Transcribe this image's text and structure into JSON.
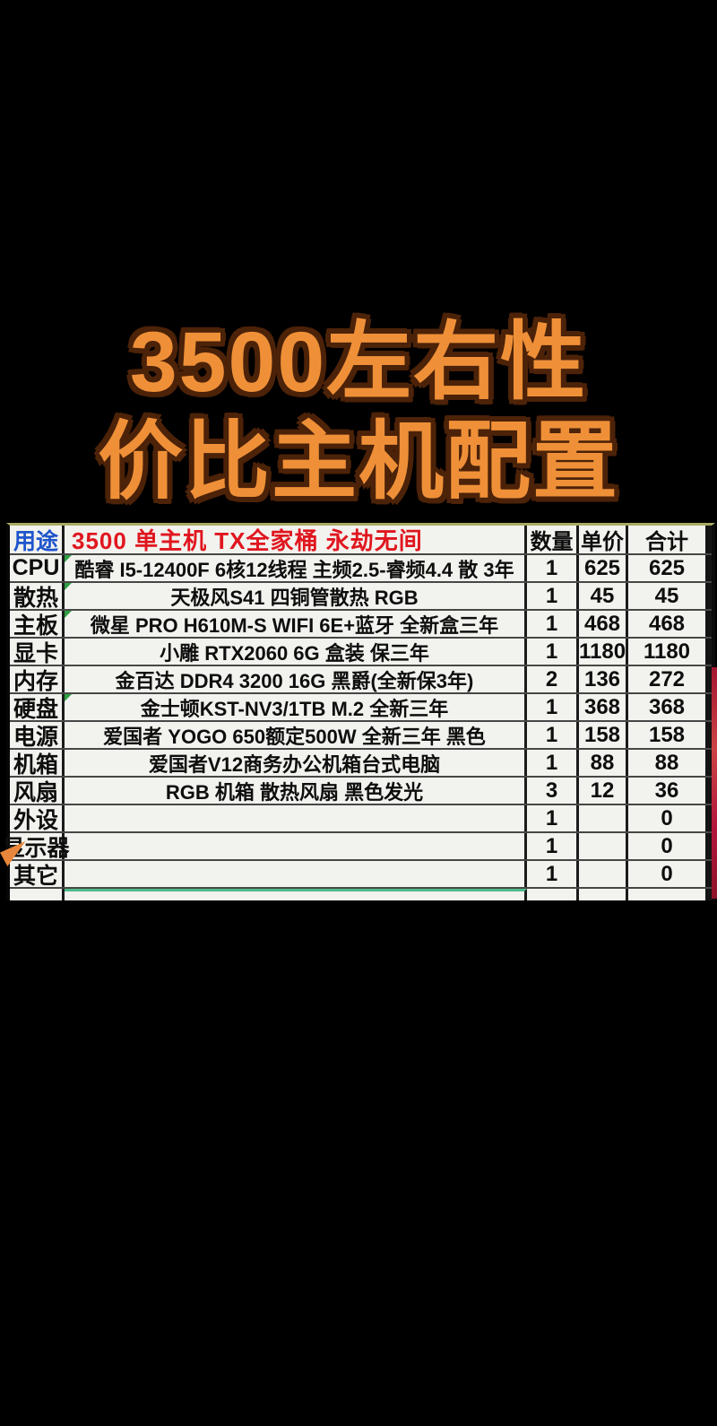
{
  "title": {
    "line1": "3500左右性",
    "line2": "价比主机配置",
    "color": "#EF9038",
    "outline_color": "#4C2208"
  },
  "table": {
    "header": {
      "purpose": "用途",
      "purpose_color": "#1E55CC",
      "build_name": "3500 单主机 TX全家桶  永劫无间",
      "build_name_color": "#E0161F",
      "qty": "数量",
      "unit_price": "单价",
      "total": "合计"
    },
    "rows": [
      {
        "label": "CPU",
        "desc": "酷睿 I5-12400F 6核12线程 主频2.5-睿频4.4 散 3年",
        "qty": "1",
        "unit_price": "625",
        "total": "625",
        "marker": true
      },
      {
        "label": "散热",
        "desc": "天极风S41 四铜管散热 RGB",
        "qty": "1",
        "unit_price": "45",
        "total": "45",
        "marker": true
      },
      {
        "label": "主板",
        "desc": "微星 PRO H610M-S WIFI 6E+蓝牙  全新盒三年",
        "qty": "1",
        "unit_price": "468",
        "total": "468",
        "marker": true
      },
      {
        "label": "显卡",
        "desc": "小雕 RTX2060 6G 盒装 保三年",
        "qty": "1",
        "unit_price": "1180",
        "total": "1180",
        "marker": false
      },
      {
        "label": "内存",
        "desc": "金百达 DDR4 3200 16G 黑爵(全新保3年)",
        "qty": "2",
        "unit_price": "136",
        "total": "272",
        "marker": false
      },
      {
        "label": "硬盘",
        "desc": "金士顿KST-NV3/1TB M.2  全新三年",
        "qty": "1",
        "unit_price": "368",
        "total": "368",
        "marker": true
      },
      {
        "label": "电源",
        "desc": "爱国者 YOGO 650额定500W  全新三年 黑色",
        "qty": "1",
        "unit_price": "158",
        "total": "158",
        "marker": false
      },
      {
        "label": "机箱",
        "desc": "爱国者V12商务办公机箱台式电脑",
        "qty": "1",
        "unit_price": "88",
        "total": "88",
        "marker": false
      },
      {
        "label": "风扇",
        "desc": "RGB  机箱 散热风扇  黑色发光",
        "qty": "3",
        "unit_price": "12",
        "total": "36",
        "marker": false
      },
      {
        "label": "外设",
        "desc": "",
        "qty": "1",
        "unit_price": "",
        "total": "0",
        "marker": false
      },
      {
        "label": "显示器",
        "desc": "",
        "qty": "1",
        "unit_price": "",
        "total": "0",
        "marker": false
      },
      {
        "label": "其它",
        "desc": "",
        "qty": "1",
        "unit_price": "",
        "total": "0",
        "marker": false
      }
    ]
  },
  "decorations": {
    "red_edge_strip_color": "#B2163A",
    "orange_arrow_color": "#E8863B",
    "selection_line_color": "#4CBB8B",
    "sheet_top_line_color": "#A9AA64"
  }
}
